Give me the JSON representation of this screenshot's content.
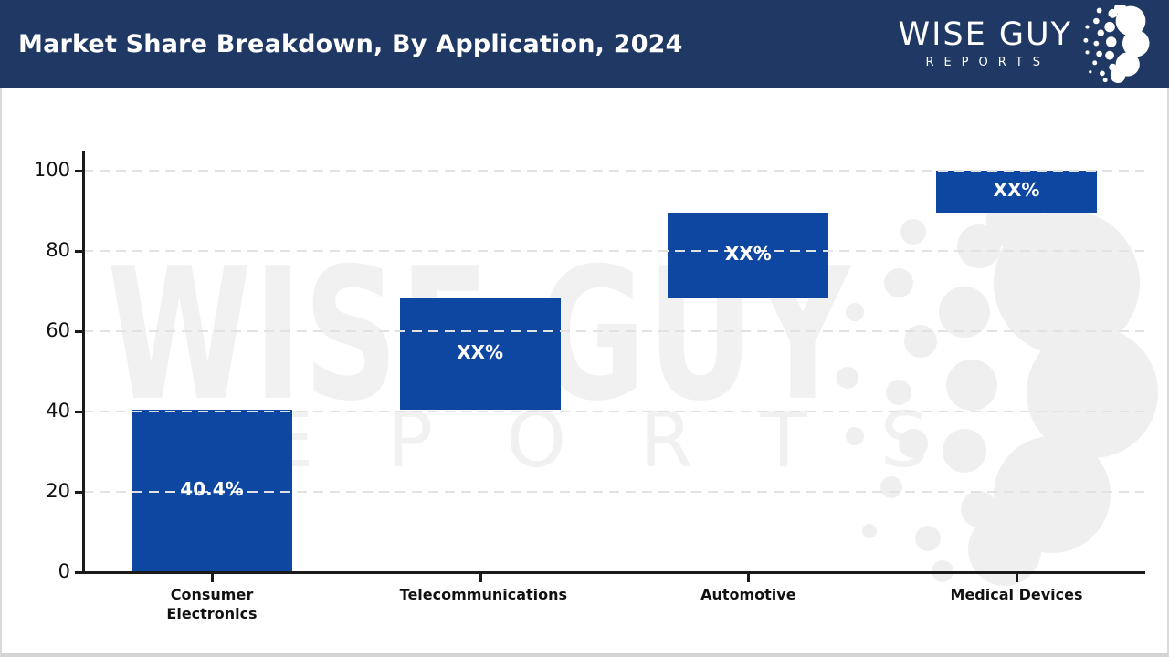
{
  "header": {
    "title": "Market Share Breakdown, By Application, 2024",
    "logo": {
      "line1": "WISE GUY",
      "line2": "REPORTS"
    }
  },
  "watermark": {
    "line1": "WISE GUY",
    "line2": "REPORTS"
  },
  "colors": {
    "header_bg": "#1f3864",
    "bar": "#0d47a1",
    "grid": "#e2e2e2",
    "axis": "#1a1a1a",
    "bar_label": "#ffffff",
    "watermark": "#f1f1f1"
  },
  "chart_data": {
    "type": "bar",
    "subtype": "waterfall",
    "title": "Market Share Breakdown, By Application, 2024",
    "categories": [
      "Consumer Electronics",
      "Telecommunications",
      "Automotive",
      "Medical Devices"
    ],
    "segments": [
      {
        "category": "Consumer Electronics",
        "start": 0,
        "end": 40.4,
        "label": "40.4%"
      },
      {
        "category": "Telecommunications",
        "start": 40.4,
        "end": 68.2,
        "label": "XX%"
      },
      {
        "category": "Automotive",
        "start": 68.2,
        "end": 89.5,
        "label": "XX%"
      },
      {
        "category": "Medical Devices",
        "start": 89.5,
        "end": 100,
        "label": "XX%"
      }
    ],
    "yticks": [
      0,
      20,
      40,
      60,
      80,
      100
    ],
    "ylim": [
      0,
      105
    ],
    "xlabel": "",
    "ylabel": "",
    "grid": "horizontal-dashed",
    "legend": "none"
  }
}
